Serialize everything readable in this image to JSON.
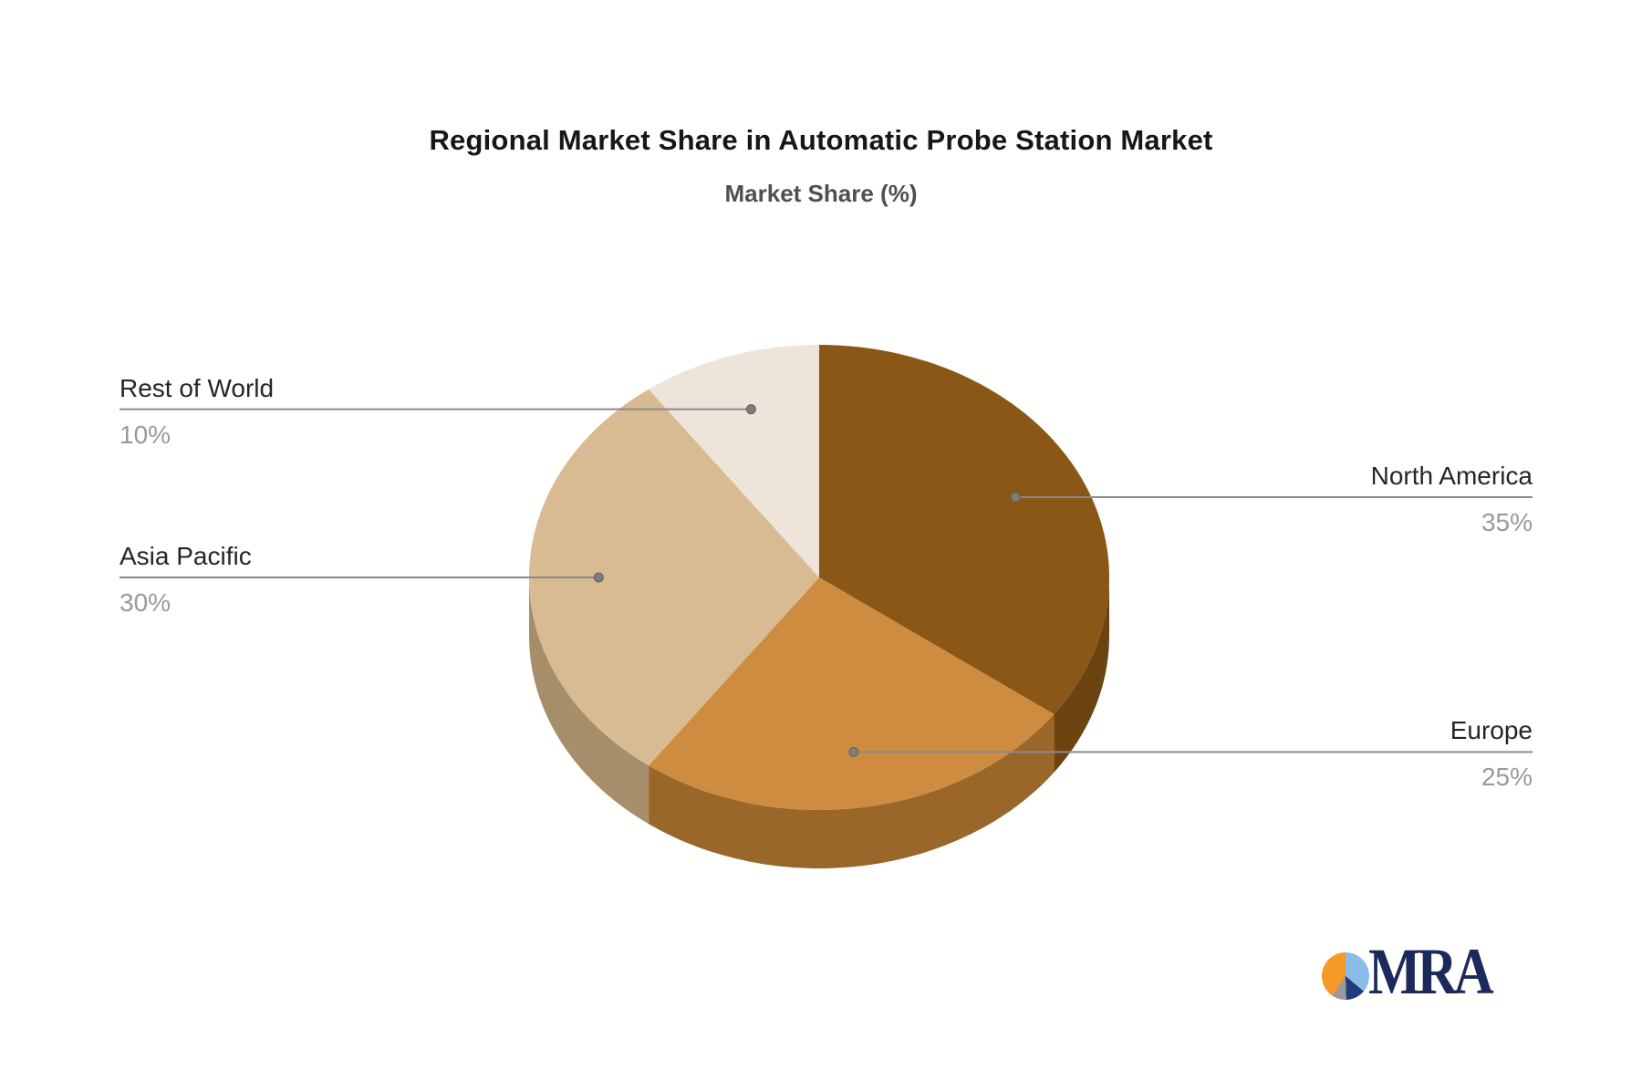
{
  "title": "Regional Market Share in Automatic Probe Station Market",
  "subtitle": "Market Share (%)",
  "logo": {
    "text": "MRA"
  },
  "chart_data": {
    "type": "pie",
    "title": "Regional Market Share in Automatic Probe Station Market",
    "subtitle": "Market Share (%)",
    "unit": "%",
    "effect": "3d",
    "direction": "clockwise",
    "start_angle_deg": 0,
    "legend_position": "outside-leader-lines",
    "labels": [
      "North America",
      "Europe",
      "Asia Pacific",
      "Rest of World"
    ],
    "values": [
      35,
      25,
      30,
      10
    ],
    "display_values": [
      "35%",
      "25%",
      "30%",
      "10%"
    ],
    "colors": [
      "#8B5716",
      "#CE8C40",
      "#D8BB92",
      "#EDE4DA"
    ],
    "side_colors": [
      "#6C4411",
      "#9A672A",
      "#A78E6B",
      "#C9BDB2"
    ],
    "leader_line_color": "#8a8a8a",
    "label_color": "#262626",
    "value_color": "#9a9a9a",
    "background_color": "#ffffff"
  }
}
